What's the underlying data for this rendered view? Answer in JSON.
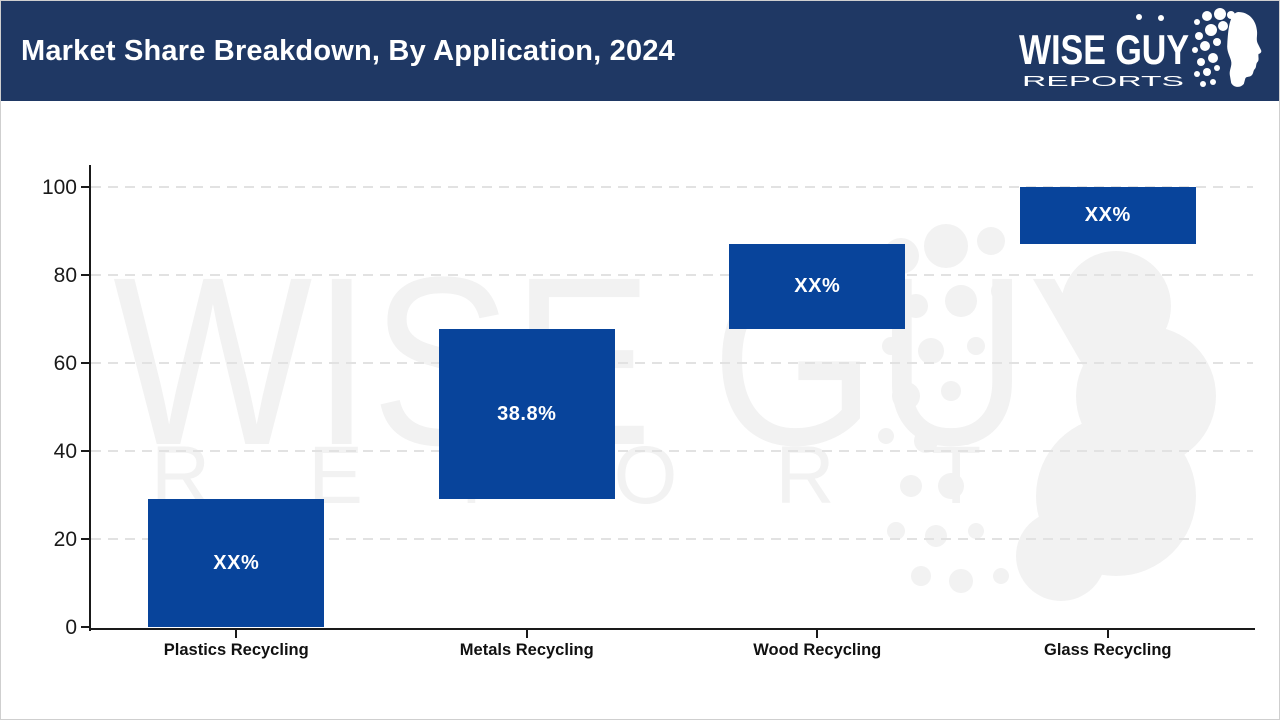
{
  "header": {
    "title": "Market Share Breakdown, By Application, 2024",
    "logo": {
      "brand_line1": "WISE GUY",
      "brand_line2": "REPORTS"
    }
  },
  "watermark": {
    "line1": "WISE GUY",
    "line2": "REPORTS"
  },
  "colors": {
    "header_bg": "#1f3864",
    "bar": "#08449b",
    "bar_label": "#ffffff",
    "grid": "#e2e2e2",
    "axis": "#1a1a1a",
    "watermark": "#f2f2f2",
    "title_text": "#ffffff"
  },
  "chart_data": {
    "type": "bar",
    "subtype": "waterfall",
    "title": "Market Share Breakdown, By Application, 2024",
    "xlabel": "",
    "ylabel": "",
    "categories": [
      "Plastics Recycling",
      "Metals Recycling",
      "Wood Recycling",
      "Glass Recycling"
    ],
    "segments": [
      {
        "category": "Plastics Recycling",
        "start": 0,
        "end": 29,
        "value": 29,
        "label": "XX%"
      },
      {
        "category": "Metals Recycling",
        "start": 29,
        "end": 67.8,
        "value": 38.8,
        "label": "38.8%"
      },
      {
        "category": "Wood Recycling",
        "start": 67.8,
        "end": 87.1,
        "value": 19.3,
        "label": "XX%"
      },
      {
        "category": "Glass Recycling",
        "start": 87.1,
        "end": 100,
        "value": 12.9,
        "label": "XX%"
      }
    ],
    "yticks": [
      0,
      20,
      40,
      60,
      80,
      100
    ],
    "ylim": [
      0,
      105
    ],
    "grid": "horizontal-dashed",
    "legend": "none"
  }
}
